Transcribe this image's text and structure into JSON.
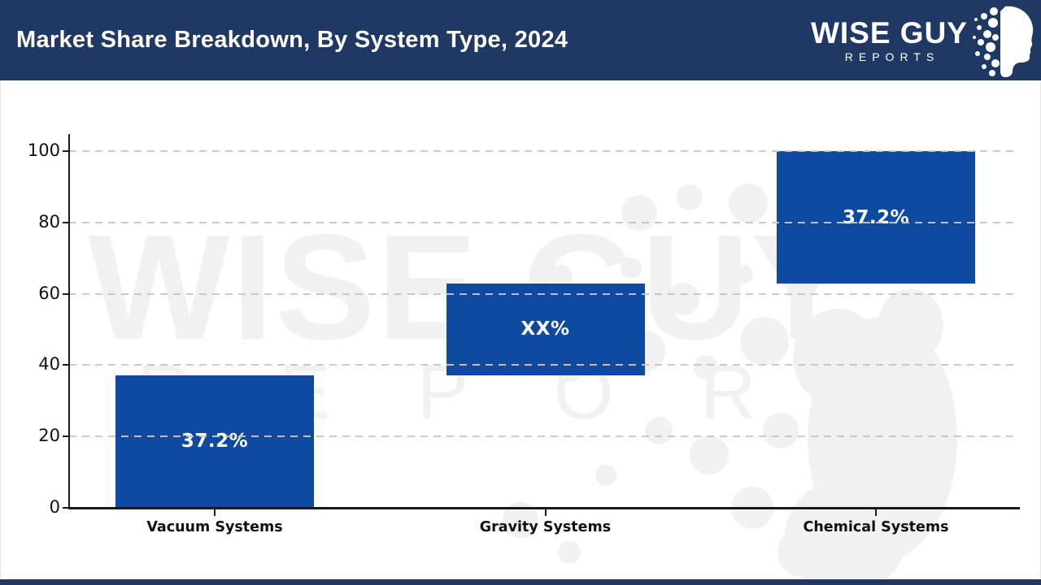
{
  "header": {
    "title": "Market Share Breakdown, By System Type, 2024",
    "logo": {
      "name": "WISE GUY",
      "sub": "REPORTS"
    }
  },
  "watermark": {
    "name": "WISE GUY",
    "sub": "REPORTS"
  },
  "colors": {
    "navy": "#1f3864",
    "bar_blue": "#0d4aa0",
    "grid": "#c6c6c6",
    "axis": "#1a1a1a",
    "watermark": "#f1f1f4",
    "bar_label": "#ffffff"
  },
  "chart_data": {
    "type": "bar",
    "variant": "floating-waterfall",
    "title": "Market Share Breakdown, By System Type, 2024",
    "categories": [
      "Vacuum Systems",
      "Gravity Systems",
      "Chemical Systems"
    ],
    "bars": [
      {
        "category": "Vacuum Systems",
        "start": 0,
        "end": 37.2,
        "label": "37.2%"
      },
      {
        "category": "Gravity Systems",
        "start": 37.2,
        "end": 62.8,
        "label": "XX%"
      },
      {
        "category": "Chemical Systems",
        "start": 62.8,
        "end": 100,
        "label": "37.2%"
      }
    ],
    "yticks": [
      0,
      20,
      40,
      60,
      80,
      100
    ],
    "ylim": [
      0,
      105
    ],
    "xlabel": "",
    "ylabel": "",
    "grid": "horizontal-dashed-above-bars",
    "legend": "none",
    "bar_color": "#0d4aa0"
  }
}
